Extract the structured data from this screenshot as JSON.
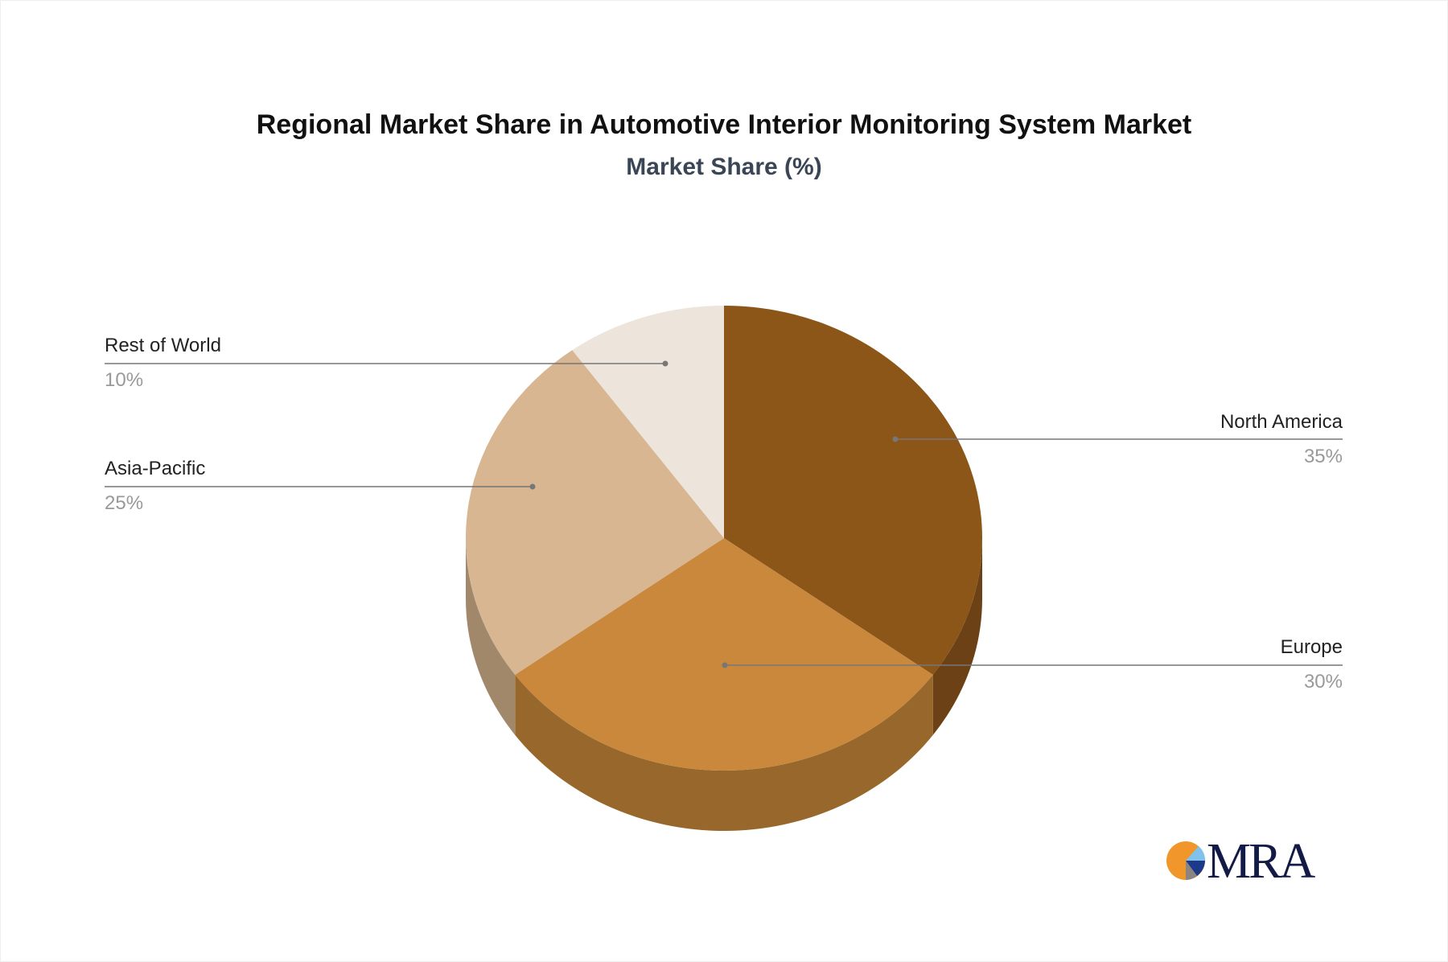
{
  "chart_data": {
    "type": "pie",
    "style": "3d",
    "title": "Regional Market Share in Automotive Interior Monitoring System Market",
    "subtitle": "Market Share (%)",
    "slices": [
      {
        "label": "North America",
        "value": 35,
        "value_label": "35%",
        "color": "#8c5619",
        "side_color": "#6b4115"
      },
      {
        "label": "Europe",
        "value": 30,
        "value_label": "30%",
        "color": "#c9883b",
        "side_color": "#98672b"
      },
      {
        "label": "Asia-Pacific",
        "value": 25,
        "value_label": "25%",
        "color": "#d7b691",
        "side_color": "#a2886b"
      },
      {
        "label": "Rest of World",
        "value": 10,
        "value_label": "10%",
        "color": "#ede4db",
        "side_color": "#bdb3a8"
      }
    ]
  },
  "logo": {
    "text": "MRA"
  }
}
